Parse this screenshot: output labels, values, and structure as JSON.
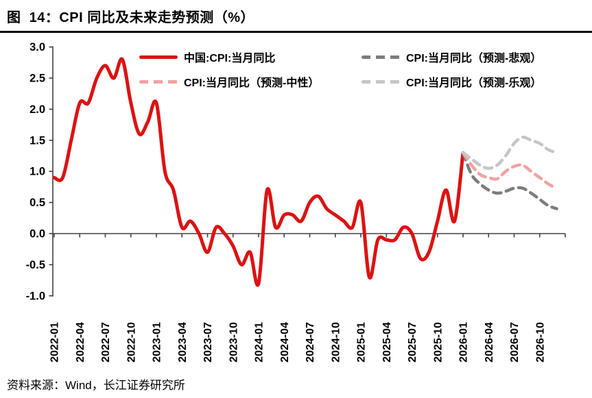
{
  "header": {
    "title": "图  14：CPI 同比及未来走势预测（%）"
  },
  "source": {
    "text": "资料来源：Wind，长江证券研究所"
  },
  "colors": {
    "actual_red": "#DC1212",
    "pessimistic_gray": "#7D7D7D",
    "neutral_pink": "#F5A1A1",
    "optimistic_lightgray": "#C6C6C6",
    "axis": "#404040",
    "text": "#000000"
  },
  "legend": [
    {
      "label": "中国:CPI:当月同比",
      "style": "solid",
      "color": "#DC1212"
    },
    {
      "label": "CPI:当月同比（预测-悲观）",
      "style": "dashed",
      "color": "#7D7D7D"
    },
    {
      "label": "CPI:当月同比（预测-中性）",
      "style": "dashed",
      "color": "#F5A1A1"
    },
    {
      "label": "CPI:当月同比（预测-乐观）",
      "style": "dashed",
      "color": "#C6C6C6"
    }
  ],
  "chart_data": {
    "type": "line",
    "title": "图  14：CPI 同比及未来走势预测（%）",
    "xlabel": "",
    "ylabel": "",
    "ylim": [
      -1.0,
      3.0
    ],
    "y_ticks": [
      3.0,
      2.5,
      2.0,
      1.5,
      1.0,
      0.5,
      0.0,
      -0.5,
      -1.0
    ],
    "grid": false,
    "x_axis_crosses_at": 0.0,
    "x_tick_step_months": 3,
    "x_range": [
      "2022-01",
      "2027-01"
    ],
    "x_tick_labels": [
      "2022-01",
      "2022-04",
      "2022-07",
      "2022-10",
      "2023-01",
      "2023-04",
      "2023-07",
      "2023-10",
      "2024-01",
      "2024-04",
      "2024-07",
      "2024-10",
      "2025-01",
      "2025-04",
      "2025-07",
      "2025-10",
      "2026-01",
      "2026-04",
      "2026-07",
      "2026-10"
    ],
    "legend_position": "top-inside",
    "series": [
      {
        "id": "actual",
        "name": "中国:CPI:当月同比",
        "color": "#DC1212",
        "dash": false,
        "width": 5,
        "start_month": "2022-01",
        "start_index": 0,
        "values": [
          0.9,
          0.9,
          1.5,
          2.1,
          2.1,
          2.5,
          2.7,
          2.5,
          2.8,
          2.1,
          1.6,
          1.8,
          2.1,
          1.0,
          0.7,
          0.1,
          0.2,
          0.0,
          -0.3,
          0.1,
          0.0,
          -0.2,
          -0.5,
          -0.3,
          -0.8,
          0.7,
          0.1,
          0.3,
          0.3,
          0.2,
          0.5,
          0.6,
          0.4,
          0.3,
          0.2,
          0.1,
          0.5,
          -0.7,
          -0.1,
          -0.1,
          -0.1,
          0.1,
          0.0,
          -0.4,
          -0.3,
          0.2,
          0.7,
          0.2,
          1.3
        ]
      },
      {
        "id": "forecast-pessimistic",
        "name": "CPI:当月同比（预测-悲观）",
        "color": "#7D7D7D",
        "dash": true,
        "width": 4.5,
        "start_month": "2026-01",
        "start_index": 48,
        "values": [
          1.3,
          0.95,
          0.8,
          0.7,
          0.65,
          0.68,
          0.73,
          0.73,
          0.65,
          0.55,
          0.45,
          0.4
        ]
      },
      {
        "id": "forecast-neutral",
        "name": "CPI:当月同比（预测-中性）",
        "color": "#F5A1A1",
        "dash": true,
        "width": 4.5,
        "start_month": "2026-01",
        "start_index": 48,
        "values": [
          1.3,
          1.1,
          0.95,
          0.9,
          0.88,
          1.0,
          1.08,
          1.1,
          1.0,
          0.9,
          0.8,
          0.72
        ]
      },
      {
        "id": "forecast-optimistic",
        "name": "CPI:当月同比（预测-乐观）",
        "color": "#C6C6C6",
        "dash": true,
        "width": 4.5,
        "start_month": "2026-01",
        "start_index": 48,
        "values": [
          1.3,
          1.2,
          1.1,
          1.05,
          1.1,
          1.25,
          1.45,
          1.55,
          1.5,
          1.45,
          1.35,
          1.3
        ]
      }
    ]
  }
}
